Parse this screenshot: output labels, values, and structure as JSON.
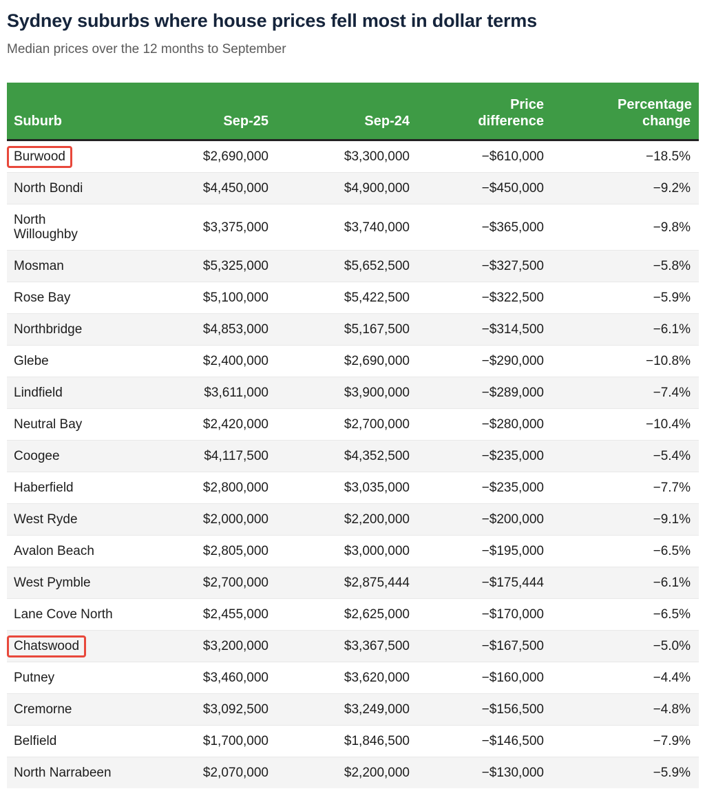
{
  "header": {
    "title": "Sydney suburbs where house prices fell most in dollar terms",
    "subtitle": "Median prices over the 12 months to September"
  },
  "chart_data": {
    "type": "table",
    "title": "Sydney suburbs where house prices fell most in dollar terms",
    "subtitle": "Median prices over the 12 months to September",
    "columns": [
      "Suburb",
      "Sep-25",
      "Sep-24",
      "Price difference",
      "Percentage change"
    ],
    "rows": [
      {
        "suburb": "Burwood",
        "sep25": "$2,690,000",
        "sep24": "$3,300,000",
        "diff": "−$610,000",
        "pct": "−18.5%",
        "highlighted": true,
        "wrap": false
      },
      {
        "suburb": "North Bondi",
        "sep25": "$4,450,000",
        "sep24": "$4,900,000",
        "diff": "−$450,000",
        "pct": "−9.2%",
        "highlighted": false,
        "wrap": false
      },
      {
        "suburb": "North Willoughby",
        "sep25": "$3,375,000",
        "sep24": "$3,740,000",
        "diff": "−$365,000",
        "pct": "−9.8%",
        "highlighted": false,
        "wrap": true
      },
      {
        "suburb": "Mosman",
        "sep25": "$5,325,000",
        "sep24": "$5,652,500",
        "diff": "−$327,500",
        "pct": "−5.8%",
        "highlighted": false,
        "wrap": false
      },
      {
        "suburb": "Rose Bay",
        "sep25": "$5,100,000",
        "sep24": "$5,422,500",
        "diff": "−$322,500",
        "pct": "−5.9%",
        "highlighted": false,
        "wrap": false
      },
      {
        "suburb": "Northbridge",
        "sep25": "$4,853,000",
        "sep24": "$5,167,500",
        "diff": "−$314,500",
        "pct": "−6.1%",
        "highlighted": false,
        "wrap": false
      },
      {
        "suburb": "Glebe",
        "sep25": "$2,400,000",
        "sep24": "$2,690,000",
        "diff": "−$290,000",
        "pct": "−10.8%",
        "highlighted": false,
        "wrap": false
      },
      {
        "suburb": "Lindfield",
        "sep25": "$3,611,000",
        "sep24": "$3,900,000",
        "diff": "−$289,000",
        "pct": "−7.4%",
        "highlighted": false,
        "wrap": false
      },
      {
        "suburb": "Neutral Bay",
        "sep25": "$2,420,000",
        "sep24": "$2,700,000",
        "diff": "−$280,000",
        "pct": "−10.4%",
        "highlighted": false,
        "wrap": false
      },
      {
        "suburb": "Coogee",
        "sep25": "$4,117,500",
        "sep24": "$4,352,500",
        "diff": "−$235,000",
        "pct": "−5.4%",
        "highlighted": false,
        "wrap": false
      },
      {
        "suburb": "Haberfield",
        "sep25": "$2,800,000",
        "sep24": "$3,035,000",
        "diff": "−$235,000",
        "pct": "−7.7%",
        "highlighted": false,
        "wrap": false
      },
      {
        "suburb": "West Ryde",
        "sep25": "$2,000,000",
        "sep24": "$2,200,000",
        "diff": "−$200,000",
        "pct": "−9.1%",
        "highlighted": false,
        "wrap": false
      },
      {
        "suburb": "Avalon Beach",
        "sep25": "$2,805,000",
        "sep24": "$3,000,000",
        "diff": "−$195,000",
        "pct": "−6.5%",
        "highlighted": false,
        "wrap": false
      },
      {
        "suburb": "West Pymble",
        "sep25": "$2,700,000",
        "sep24": "$2,875,444",
        "diff": "−$175,444",
        "pct": "−6.1%",
        "highlighted": false,
        "wrap": false
      },
      {
        "suburb": "Lane Cove North",
        "sep25": "$2,455,000",
        "sep24": "$2,625,000",
        "diff": "−$170,000",
        "pct": "−6.5%",
        "highlighted": false,
        "wrap": false
      },
      {
        "suburb": "Chatswood",
        "sep25": "$3,200,000",
        "sep24": "$3,367,500",
        "diff": "−$167,500",
        "pct": "−5.0%",
        "highlighted": true,
        "wrap": false
      },
      {
        "suburb": "Putney",
        "sep25": "$3,460,000",
        "sep24": "$3,620,000",
        "diff": "−$160,000",
        "pct": "−4.4%",
        "highlighted": false,
        "wrap": false
      },
      {
        "suburb": "Cremorne",
        "sep25": "$3,092,500",
        "sep24": "$3,249,000",
        "diff": "−$156,500",
        "pct": "−4.8%",
        "highlighted": false,
        "wrap": false
      },
      {
        "suburb": "Belfield",
        "sep25": "$1,700,000",
        "sep24": "$1,846,500",
        "diff": "−$146,500",
        "pct": "−7.9%",
        "highlighted": false,
        "wrap": false
      },
      {
        "suburb": "North Narrabeen",
        "sep25": "$2,070,000",
        "sep24": "$2,200,000",
        "diff": "−$130,000",
        "pct": "−5.9%",
        "highlighted": false,
        "wrap": false
      }
    ],
    "highlighted_suburbs": [
      "Burwood",
      "Chatswood"
    ],
    "layout": {
      "stripe": "alternating rows, even rows shaded",
      "numeric_alignment": "right"
    }
  },
  "colors": {
    "header_green": "#3e9b45",
    "header_text": "#ffffff",
    "header_bottom_border": "#222222",
    "title_navy": "#15243b",
    "subtitle_gray": "#5a5a5a",
    "body_text": "#1d1d1d",
    "stripe_gray": "#f4f4f4",
    "row_divider": "#e8e8e8",
    "highlight_red": "#e8483b"
  }
}
